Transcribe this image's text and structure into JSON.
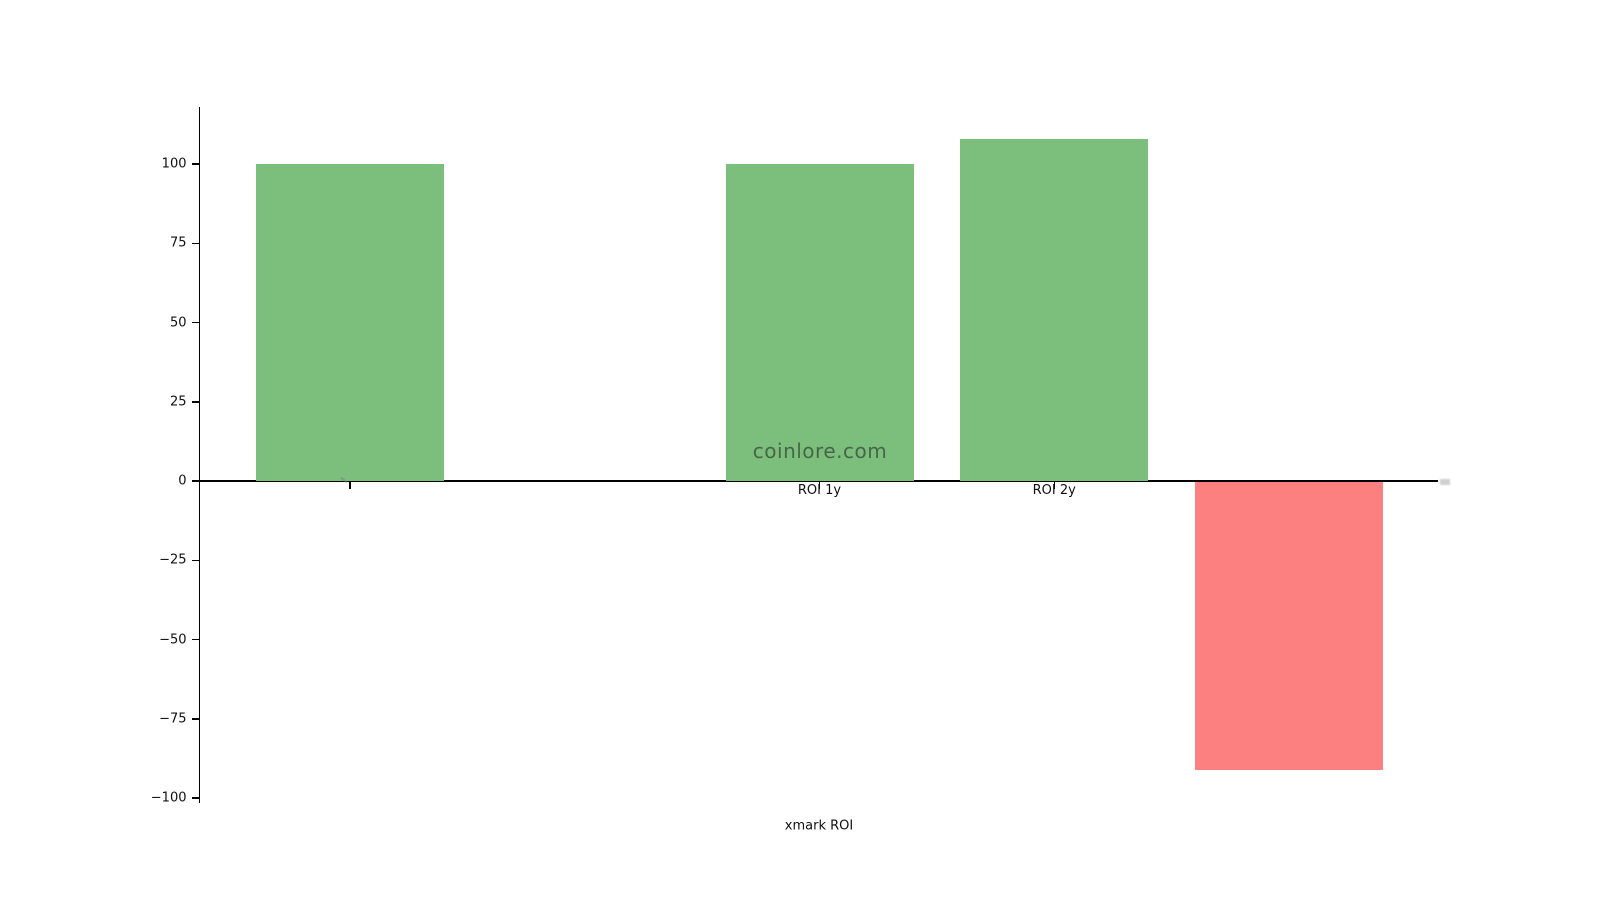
{
  "watermark": "coinlore.com",
  "chart_data": {
    "type": "bar",
    "title": "",
    "xlabel": "xmark ROI",
    "ylabel": "",
    "categories": [
      "",
      "",
      "ROI 1y",
      "ROI 2y",
      ""
    ],
    "values": [
      100,
      0,
      100,
      108,
      -91
    ],
    "positive_color": "#7cbe7c",
    "negative_color": "#fc8080",
    "axis_color": "#000000",
    "text_color": "#111111",
    "y_ticks": [
      -100,
      -75,
      -50,
      -25,
      0,
      25,
      50,
      75,
      100
    ],
    "ylim": [
      -101,
      118
    ],
    "xtick_slots": [
      0,
      2,
      3
    ],
    "grid": false,
    "legend": "none"
  }
}
